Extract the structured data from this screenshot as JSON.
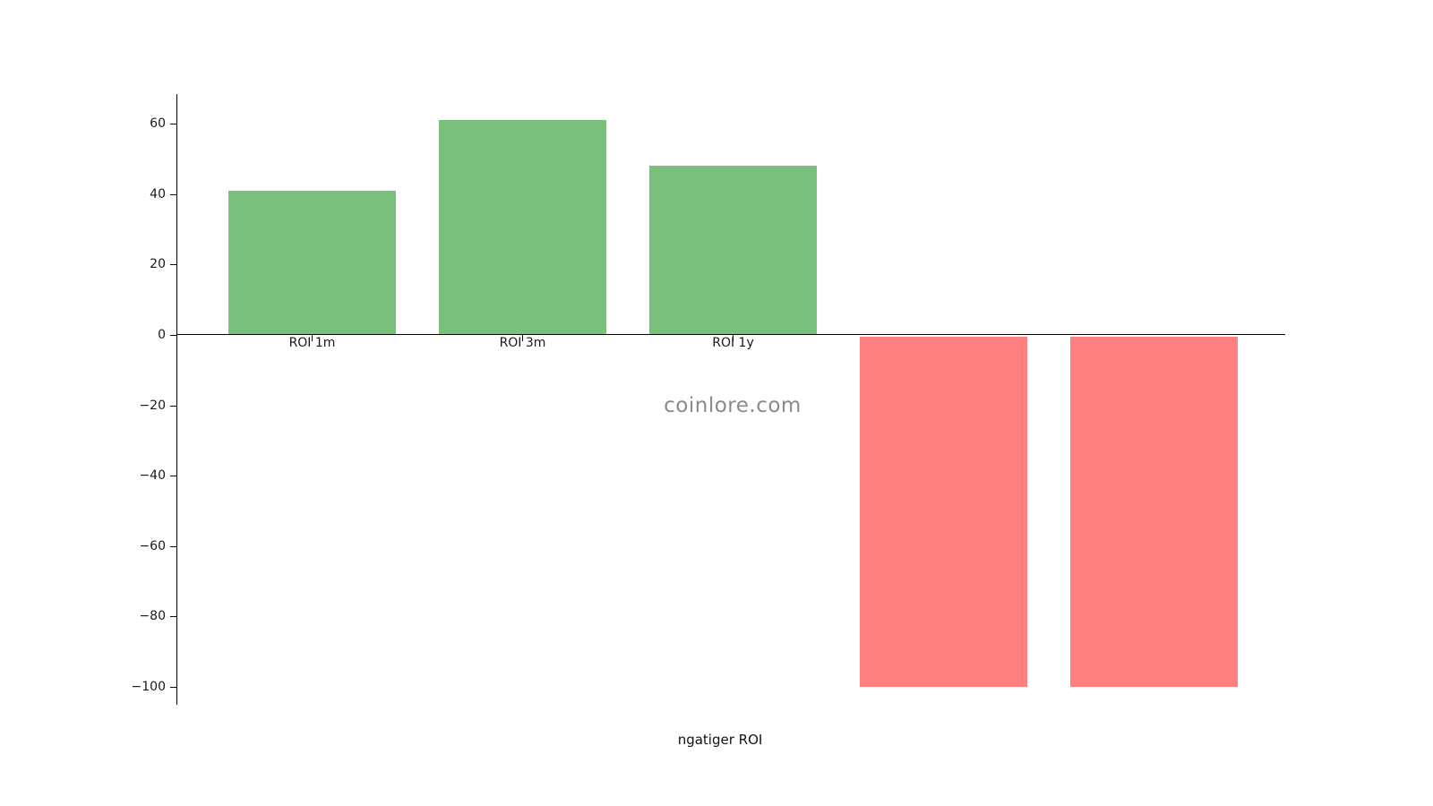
{
  "watermark": "coinlore.com",
  "colors": {
    "background": "#ffffff",
    "axis": "#000000",
    "tick_label": "#1a1a1a",
    "watermark": "#8a8a8a",
    "positive_bar": "#7bbf7d",
    "negative_bar": "#fe7f7f"
  },
  "chart_data": {
    "type": "bar",
    "title": "",
    "xlabel": "ngatiger ROI",
    "ylabel": "",
    "categories": [
      "ROI 1m",
      "ROI 3m",
      "ROI 1y",
      "",
      ""
    ],
    "values": [
      41,
      61,
      48,
      -100,
      -100
    ],
    "bar_colors": [
      "#7bbf7d",
      "#7bbf7d",
      "#7bbf7d",
      "#fe7f7f",
      "#fe7f7f"
    ],
    "yticks": [
      60,
      40,
      20,
      0,
      -20,
      -40,
      -60,
      -80,
      -100
    ],
    "ytick_labels": [
      "60",
      "40",
      "20",
      "0",
      "−20",
      "−40",
      "−60",
      "−80",
      "−100"
    ],
    "ylim": [
      -105,
      68
    ],
    "grid": false,
    "legend": null,
    "annotations": [
      "coinlore.com"
    ]
  }
}
